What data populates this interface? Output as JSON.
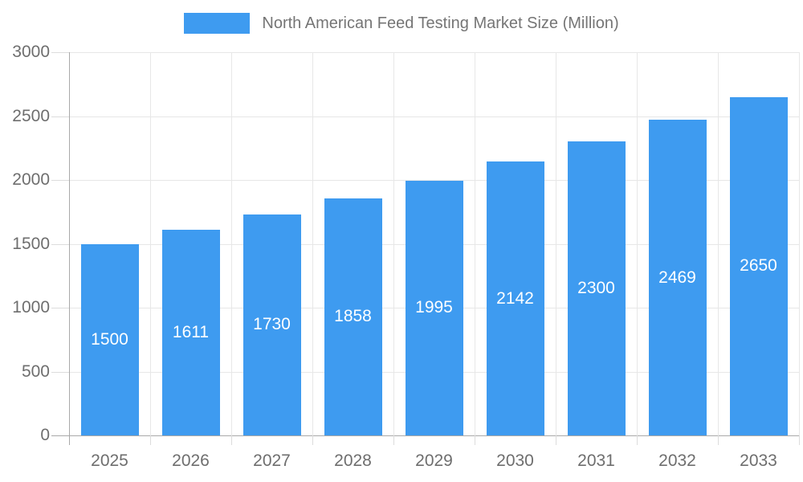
{
  "legend": {
    "label": "North American Feed Testing Market Size (Million)"
  },
  "chart_data": {
    "type": "bar",
    "title": "North American Feed Testing Market Size (Million)",
    "series_name": "North American Feed Testing Market Size (Million)",
    "categories": [
      "2025",
      "2026",
      "2027",
      "2028",
      "2029",
      "2030",
      "2031",
      "2032",
      "2033"
    ],
    "values": [
      1500,
      1611,
      1730,
      1858,
      1995,
      2142,
      2300,
      2469,
      2650
    ],
    "xlabel": "",
    "ylabel": "",
    "ylim": [
      0,
      3000
    ],
    "yticks": [
      0,
      500,
      1000,
      1500,
      2000,
      2500,
      3000
    ],
    "grid": true,
    "legend_position": "top",
    "bar_color": "#3e9bf0",
    "bar_label_color": "#ffffff",
    "axis_text_color": "#6e6e6e",
    "legend_text_color": "#757575",
    "grid_color": "#e7e7e7",
    "tick_color": "#dcdcdc",
    "axis_line_color": "#a9a9a9"
  }
}
